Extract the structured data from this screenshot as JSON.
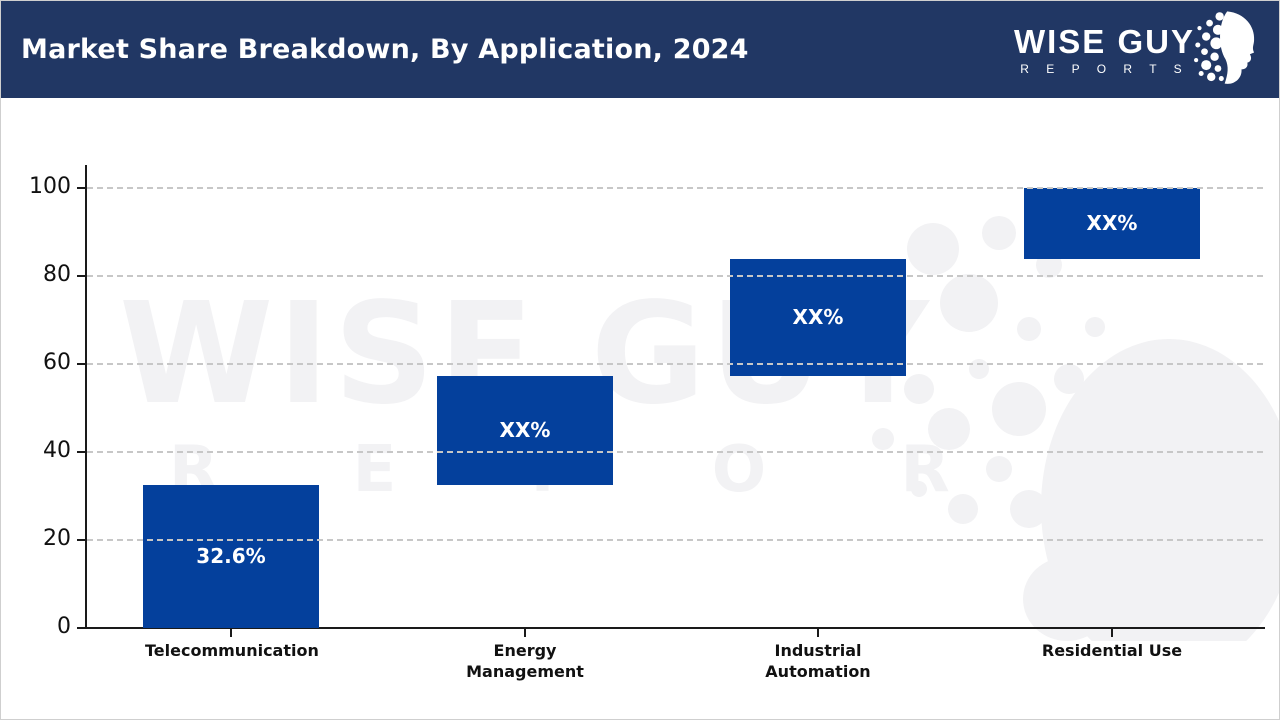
{
  "page": {
    "background": "#ffffff",
    "border_color": "#cfcfcf"
  },
  "header": {
    "bg_color": "#213764",
    "title": "Market Share Breakdown, By Application, 2024",
    "logo": {
      "name": "WISE GUY",
      "tagline": "R E P O R T S"
    }
  },
  "watermark": {
    "line1": "WISE GUY",
    "line2": "R E P O R T S"
  },
  "chart_data": {
    "type": "bar",
    "subtype": "stacked-waterfall (floating segments, one per category)",
    "title": "Market Share Breakdown, By Application, 2024",
    "categories": [
      "Telecommunication",
      "Energy Management",
      "Industrial Automation",
      "Residential Use"
    ],
    "segments": [
      {
        "category": "Telecommunication",
        "start": 0,
        "end": 32.6,
        "label": "32.6%"
      },
      {
        "category": "Energy Management",
        "start": 32.6,
        "end": 57.3,
        "label": "XX%"
      },
      {
        "category": "Industrial Automation",
        "start": 57.3,
        "end": 83.9,
        "label": "XX%"
      },
      {
        "category": "Residential Use",
        "start": 83.9,
        "end": 100,
        "label": "XX%"
      }
    ],
    "bar_labels": [
      "32.6%",
      "XX%",
      "XX%",
      "XX%"
    ],
    "xlabel": "",
    "ylabel": "",
    "ylim": [
      0,
      100
    ],
    "yticks": [
      0,
      20,
      40,
      60,
      80,
      100
    ],
    "grid": {
      "horizontal": true,
      "style": "dashed",
      "color": "#c7c7c7",
      "drawn_above_bars": true
    },
    "bar_color": "#04409c",
    "bar_label_color": "#ffffff",
    "axis_color": "#1a1a1a",
    "legend": null
  }
}
